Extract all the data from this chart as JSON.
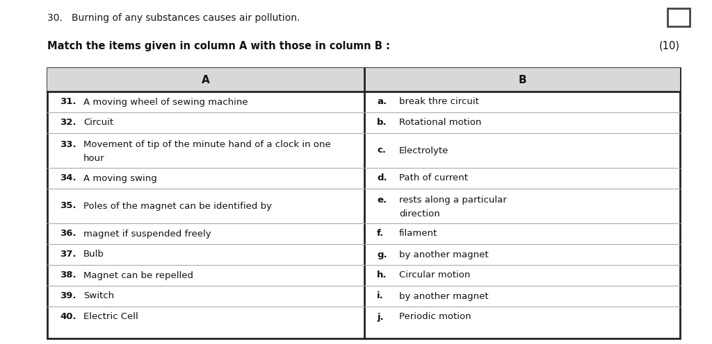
{
  "bg_color": "#e8e8e8",
  "page_bg": "#ffffff",
  "header_text": "30.   Burning of any substances causes air pollution.",
  "match_instruction": "Match the items given in column A with those in column B :",
  "marks": "(10)",
  "col_a_header": "A",
  "col_b_header": "B",
  "col_a_items": [
    {
      "num": "31.",
      "text": "A moving wheel of sewing machine"
    },
    {
      "num": "32.",
      "text": "Circuit"
    },
    {
      "num": "33.",
      "text": "Movement of tip of the minute hand of a clock in one\nhour"
    },
    {
      "num": "34.",
      "text": "A moving swing"
    },
    {
      "num": "35.",
      "text": "Poles of the magnet can be identified by"
    },
    {
      "num": "36.",
      "text": "magnet if suspended freely"
    },
    {
      "num": "37.",
      "text": "Bulb"
    },
    {
      "num": "38.",
      "text": "Magnet can be repelled"
    },
    {
      "num": "39.",
      "text": "Switch"
    },
    {
      "num": "40.",
      "text": "Electric Cell"
    }
  ],
  "col_b_items": [
    {
      "letter": "a.",
      "text": "break thre circuit"
    },
    {
      "letter": "b.",
      "text": "Rotational motion"
    },
    {
      "letter": "c.",
      "text": "Electrolyte"
    },
    {
      "letter": "d.",
      "text": "Path of current"
    },
    {
      "letter": "e.",
      "text": "rests along a particular\ndirection"
    },
    {
      "letter": "f.",
      "text": "filament"
    },
    {
      "letter": "g.",
      "text": "by another magnet"
    },
    {
      "letter": "h.",
      "text": "Circular motion"
    },
    {
      "letter": "i.",
      "text": "by another magnet"
    },
    {
      "letter": "j.",
      "text": "Periodic motion"
    }
  ]
}
